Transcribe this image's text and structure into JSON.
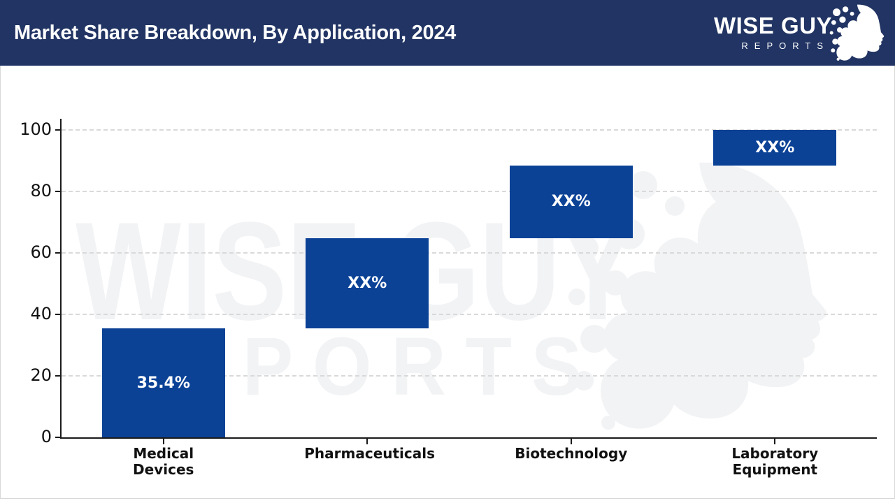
{
  "header": {
    "title": "Market Share Breakdown, By Application, 2024",
    "logo": {
      "line1": "WISE GUY",
      "line2": "REPORTS"
    }
  },
  "watermark": {
    "line1": "WISE GUY",
    "line2": "REPORTS"
  },
  "colors": {
    "header_navy": "#213463",
    "bar_blue": "#0b4296",
    "axis": "#1a1a1a",
    "gridline": "#d9d9d9",
    "watermark_gray": "#f2f3f5",
    "background": "#ffffff"
  },
  "chart_data": {
    "type": "bar",
    "subtype": "floating-waterfall",
    "title": "Market Share Breakdown, By Application, 2024",
    "categories": [
      "Medical Devices",
      "Pharmaceuticals",
      "Biotechnology",
      "Laboratory Equipment"
    ],
    "bars": [
      {
        "category": "Medical Devices",
        "start": 0,
        "end": 35.4,
        "value": 35.4,
        "label": "35.4%"
      },
      {
        "category": "Pharmaceuticals",
        "start": 35.4,
        "end": 64.8,
        "value": 29.4,
        "label": "XX%"
      },
      {
        "category": "Biotechnology",
        "start": 64.8,
        "end": 88.4,
        "value": 23.6,
        "label": "XX%"
      },
      {
        "category": "Laboratory Equipment",
        "start": 88.4,
        "end": 100,
        "value": 11.6,
        "label": "XX%"
      }
    ],
    "ylim": [
      0,
      100
    ],
    "yticks": [
      0,
      20,
      40,
      60,
      80,
      100
    ],
    "xlabel": "",
    "ylabel": "",
    "grid": "horizontal-dashed",
    "legend": "none",
    "bar_color": "#0b4296",
    "bar_label_color": "#ffffff"
  }
}
